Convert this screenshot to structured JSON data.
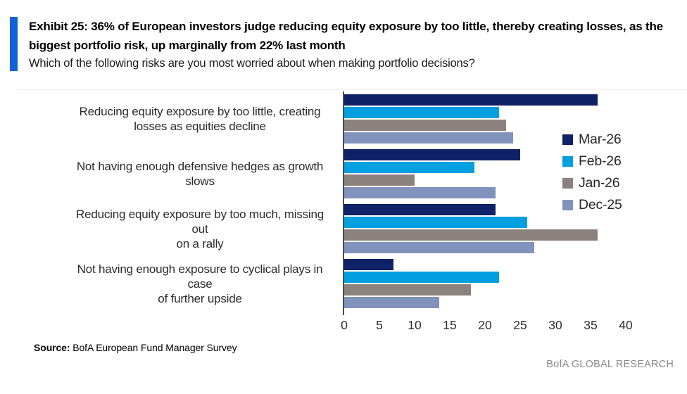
{
  "header": {
    "exhibit_title": "Exhibit 25: 36% of European investors judge reducing equity exposure by too little, thereby creating losses, as the biggest portfolio risk, up marginally from 22% last month",
    "question": "Which of the following risks are you most worried about when making portfolio decisions?"
  },
  "chart_data": {
    "type": "bar",
    "orientation": "horizontal",
    "title": "",
    "xlabel": "",
    "ylabel": "",
    "unit": "percent of respondents",
    "xlim": [
      0,
      40
    ],
    "xticks": [
      0,
      5,
      10,
      15,
      20,
      25,
      30,
      35,
      40
    ],
    "grid": false,
    "legend_position": "right-inside",
    "categories": [
      "Reducing equity exposure by too little, creating losses as equities decline",
      "Not having enough defensive hedges as growth slows",
      "Reducing equity exposure by too much, missing out on a rally",
      "Not having enough exposure to cyclical plays in case of further upside"
    ],
    "category_display_lines": [
      [
        "Reducing equity exposure by too little, creating",
        "losses as equities decline"
      ],
      [
        "Not having enough defensive hedges as growth",
        "slows"
      ],
      [
        "Reducing equity exposure by too much, missing out",
        "on a rally"
      ],
      [
        "Not having enough exposure to cyclical plays in case",
        "of further upside"
      ]
    ],
    "series": [
      {
        "name": "Mar-26",
        "color": "#0F2167",
        "values": [
          36,
          25,
          21.5,
          7
        ]
      },
      {
        "name": "Feb-26",
        "color": "#009FE0",
        "values": [
          22,
          18.5,
          26,
          22
        ]
      },
      {
        "name": "Jan-26",
        "color": "#8B817E",
        "values": [
          23,
          10,
          36,
          18
        ]
      },
      {
        "name": "Dec-25",
        "color": "#8192BC",
        "values": [
          24,
          21.5,
          27,
          13.5
        ]
      }
    ]
  },
  "footer": {
    "source_label": "Source:",
    "source_text": " BofA European Fund Manager Survey",
    "branding": "BofA GLOBAL RESEARCH"
  },
  "colors": {
    "accent_bar": "#0F62D8",
    "axis_line": "#4a4a4a",
    "branding_gray": "#8a8a8a"
  }
}
